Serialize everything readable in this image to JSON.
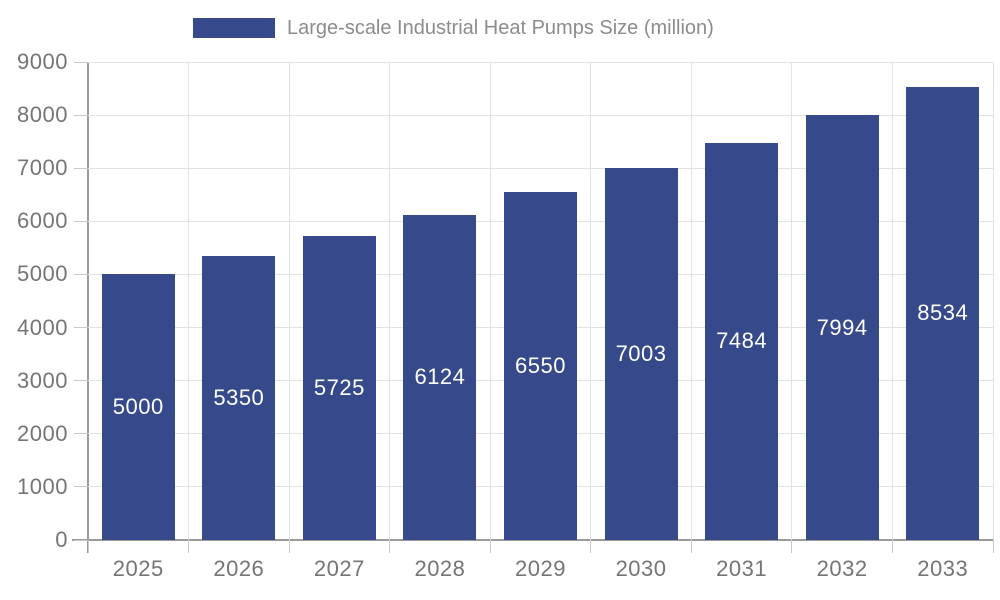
{
  "legend": {
    "label": "Large-scale Industrial Heat Pumps Size (million)"
  },
  "chart_data": {
    "type": "bar",
    "title": "Large-scale Industrial Heat Pumps Size (million)",
    "categories": [
      "2025",
      "2026",
      "2027",
      "2028",
      "2029",
      "2030",
      "2031",
      "2032",
      "2033"
    ],
    "values": [
      5000,
      5350,
      5725,
      6124,
      6550,
      7003,
      7484,
      7994,
      8534
    ],
    "xlabel": "",
    "ylabel": "",
    "ylim": [
      0,
      9000
    ],
    "ytick_step": 1000,
    "grid": true,
    "legend_position": "top"
  },
  "colors": {
    "bar": "#35498b",
    "grid_line": "#e2e2e2",
    "axis_line": "#9a9a9a",
    "tick": "#c9c9c9",
    "axis_text": "#757575",
    "legend_text": "#8c8c8c",
    "value_label": "#ffffff",
    "background": "#ffffff"
  }
}
